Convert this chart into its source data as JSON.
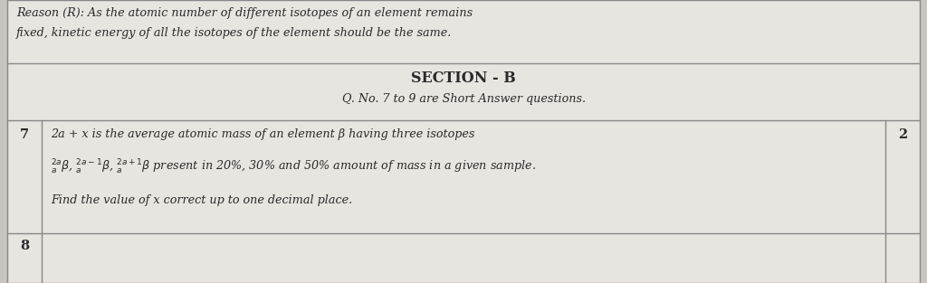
{
  "bg_color": "#c8c4c0",
  "cell_bg": "#d4d0cc",
  "white_bg": "#e8e4e0",
  "line_color": "#888888",
  "text_color": "#2a2a2a",
  "top_line1": "Reason (R): As the atomic number of different isotopes of an element remains",
  "top_line2": "fixed, kinetic energy of all the isotopes of the element should be the same.",
  "section_title": "SECTION - B",
  "section_subtitle": "Q. No. 7 to 9 are Short Answer questions.",
  "q_number": "7",
  "q_mark": "2",
  "q_line1": "2a + x is the average atomic mass of an element β having three isotopes",
  "q_line2_plain": " present in 20%, 30% and 50% amount of mass in a given sample.",
  "q_line3": "Find the value of x correct up to one decimal place."
}
